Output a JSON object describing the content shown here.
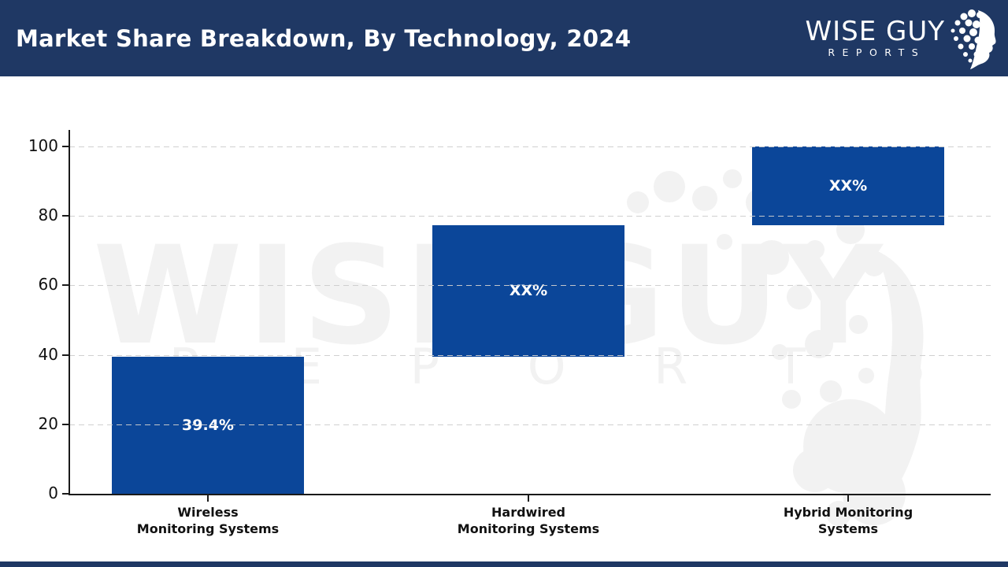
{
  "header": {
    "title": "Market Share Breakdown, By Technology, 2024",
    "logo": {
      "main": "WISE GUY",
      "sub": "REPORTS"
    }
  },
  "watermark": {
    "line1": "WISE GUY",
    "line2": "R E P O R T S"
  },
  "chart_data": {
    "type": "bar",
    "subtype": "floating-waterfall-segments",
    "title": "Market Share Breakdown, By Technology, 2024",
    "categories": [
      "Wireless Monitoring Systems",
      "Hardwired Monitoring Systems",
      "Hybrid Monitoring Systems"
    ],
    "category_lines": [
      [
        "Wireless",
        "Monitoring Systems"
      ],
      [
        "Hardwired",
        "Monitoring Systems"
      ],
      [
        "Hybrid Monitoring",
        "Systems"
      ]
    ],
    "segments": [
      {
        "start": 0,
        "end": 39.4,
        "label": "39.4%"
      },
      {
        "start": 39.4,
        "end": 77.4,
        "label": "XX%"
      },
      {
        "start": 77.4,
        "end": 100,
        "label": "XX%"
      }
    ],
    "ylim": [
      0,
      100
    ],
    "yticks": [
      0,
      20,
      40,
      60,
      80,
      100
    ],
    "grid": "horizontal-dashed",
    "legend": "none",
    "xlabel": "",
    "ylabel": ""
  },
  "colors": {
    "header_bg": "#1f3864",
    "footer_bg": "#1f3864",
    "bar": "#0b4699",
    "bar_label": "#ffffff",
    "grid": "#cdcdcd",
    "axis": "#1a1a1a",
    "watermark": "#f2f2f2"
  }
}
